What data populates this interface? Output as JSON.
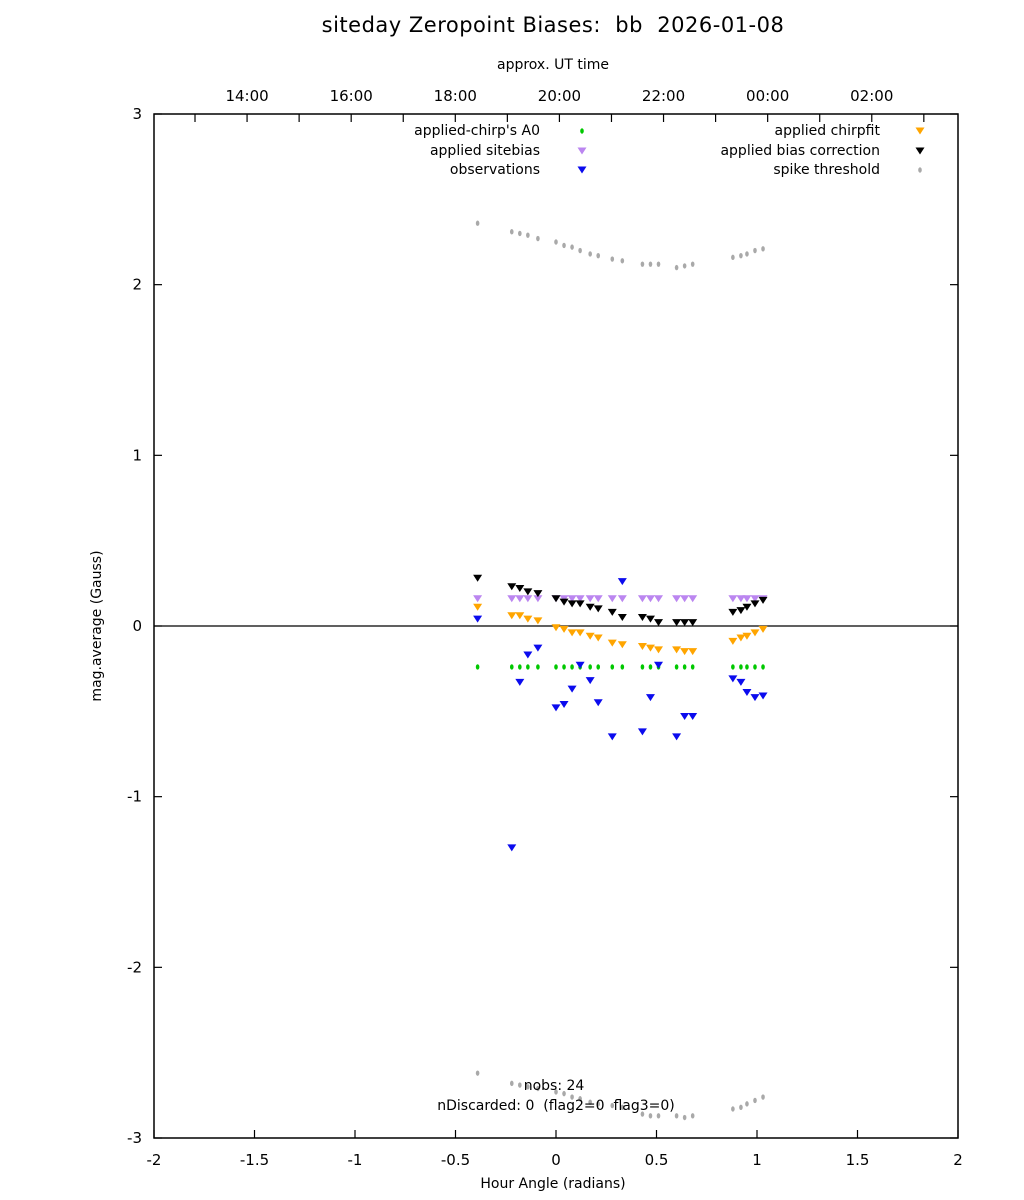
{
  "chart_data": {
    "type": "scatter",
    "title": "siteday Zeropoint Biases:  bb  2026-01-08",
    "x2label": "approx. UT time",
    "xlabel": "Hour Angle (radians)",
    "ylabel": "mag.average (Gauss)",
    "xlim": [
      -2,
      2
    ],
    "ylim": [
      -3,
      3
    ],
    "grid": false,
    "zero_line": true,
    "x_ticks": [
      -2,
      -1.5,
      -1,
      -0.5,
      0,
      0.5,
      1,
      1.5,
      2
    ],
    "y_ticks": [
      -3,
      -2,
      -1,
      0,
      1,
      2,
      3
    ],
    "top_ticks": [
      {
        "x": -1.796,
        "label": ""
      },
      {
        "x": -1.537,
        "label": "14:00"
      },
      {
        "x": -1.278,
        "label": ""
      },
      {
        "x": -1.019,
        "label": "16:00"
      },
      {
        "x": -0.76,
        "label": ""
      },
      {
        "x": -0.501,
        "label": "18:00"
      },
      {
        "x": -0.242,
        "label": ""
      },
      {
        "x": 0.017,
        "label": "20:00"
      },
      {
        "x": 0.276,
        "label": ""
      },
      {
        "x": 0.535,
        "label": "22:00"
      },
      {
        "x": 0.794,
        "label": ""
      },
      {
        "x": 1.053,
        "label": "00:00"
      },
      {
        "x": 1.312,
        "label": ""
      },
      {
        "x": 1.571,
        "label": "02:00"
      },
      {
        "x": 1.83,
        "label": ""
      }
    ],
    "x": [
      -0.39,
      -0.22,
      -0.18,
      -0.14,
      -0.09,
      0.0,
      0.04,
      0.08,
      0.12,
      0.17,
      0.21,
      0.28,
      0.33,
      0.43,
      0.47,
      0.51,
      0.6,
      0.64,
      0.68,
      0.88,
      0.92,
      0.95,
      0.99,
      1.03
    ],
    "series": [
      {
        "name": "applied-chirp's A0",
        "marker": "dot",
        "color": "#00C800",
        "values": [
          -0.24,
          -0.24,
          -0.24,
          -0.24,
          -0.24,
          -0.24,
          -0.24,
          -0.24,
          -0.24,
          -0.24,
          -0.24,
          -0.24,
          -0.24,
          -0.24,
          -0.24,
          -0.24,
          -0.24,
          -0.24,
          -0.24,
          -0.24,
          -0.24,
          -0.24,
          -0.24,
          -0.24
        ]
      },
      {
        "name": "applied chirpfit",
        "marker": "triangle-down",
        "color": "#FFA500",
        "values": [
          0.11,
          0.06,
          0.06,
          0.04,
          0.03,
          -0.01,
          -0.02,
          -0.04,
          -0.04,
          -0.06,
          -0.07,
          -0.1,
          -0.11,
          -0.12,
          -0.13,
          -0.14,
          -0.14,
          -0.15,
          -0.15,
          -0.09,
          -0.07,
          -0.06,
          -0.04,
          -0.02
        ]
      },
      {
        "name": "applied sitebias",
        "marker": "triangle-down",
        "color": "#BB86F0",
        "values": [
          0.16,
          0.16,
          0.16,
          0.16,
          0.16,
          0.16,
          0.16,
          0.16,
          0.16,
          0.16,
          0.16,
          0.16,
          0.16,
          0.16,
          0.16,
          0.16,
          0.16,
          0.16,
          0.16,
          0.16,
          0.16,
          0.16,
          0.16,
          0.16
        ]
      },
      {
        "name": "applied bias correction",
        "marker": "triangle-down",
        "color": "#000000",
        "values": [
          0.28,
          0.23,
          0.22,
          0.2,
          0.19,
          0.16,
          0.14,
          0.13,
          0.13,
          0.11,
          0.1,
          0.08,
          0.05,
          0.05,
          0.04,
          0.02,
          0.02,
          0.02,
          0.02,
          0.08,
          0.09,
          0.11,
          0.13,
          0.15
        ]
      },
      {
        "name": "observations",
        "marker": "triangle-down",
        "color": "#0B0BEE",
        "values": [
          0.04,
          -1.3,
          -0.33,
          -0.17,
          -0.13,
          -0.48,
          -0.46,
          -0.37,
          -0.23,
          -0.32,
          -0.45,
          -0.65,
          0.26,
          -0.62,
          -0.42,
          -0.23,
          -0.65,
          -0.53,
          -0.53,
          -0.31,
          -0.33,
          -0.39,
          -0.42,
          -0.41
        ]
      },
      {
        "name": "spike threshold",
        "marker": "dot",
        "color": "#A9A9A9",
        "values": [
          2.36,
          2.31,
          2.3,
          2.29,
          2.27,
          2.25,
          2.23,
          2.22,
          2.2,
          2.18,
          2.17,
          2.15,
          2.14,
          2.12,
          2.12,
          2.12,
          2.1,
          2.11,
          2.12,
          2.16,
          2.17,
          2.18,
          2.2,
          2.21
        ],
        "values2": [
          -2.62,
          -2.68,
          -2.69,
          -2.7,
          -2.71,
          -2.73,
          -2.74,
          -2.76,
          -2.77,
          -2.79,
          -2.8,
          -2.81,
          -2.82,
          -2.86,
          -2.87,
          -2.87,
          -2.87,
          -2.88,
          -2.87,
          -2.83,
          -2.82,
          -2.8,
          -2.78,
          -2.76
        ]
      }
    ],
    "legend": {
      "position": "top-inside",
      "left": [
        {
          "label": "applied-chirp's A0",
          "marker": "dot",
          "color": "#00C800"
        },
        {
          "label": "applied sitebias",
          "marker": "triangle-down",
          "color": "#BB86F0"
        },
        {
          "label": "observations",
          "marker": "triangle-down",
          "color": "#0B0BEE"
        }
      ],
      "right": [
        {
          "label": "applied chirpfit",
          "marker": "triangle-down",
          "color": "#FFA500"
        },
        {
          "label": "applied bias correction",
          "marker": "triangle-down",
          "color": "#000000"
        },
        {
          "label": "spike threshold",
          "marker": "dot",
          "color": "#A9A9A9"
        }
      ]
    },
    "annotations": {
      "nobs": "nobs: 24",
      "ndiscarded": "nDiscarded: 0  (flag2=0  flag3=0)"
    }
  }
}
